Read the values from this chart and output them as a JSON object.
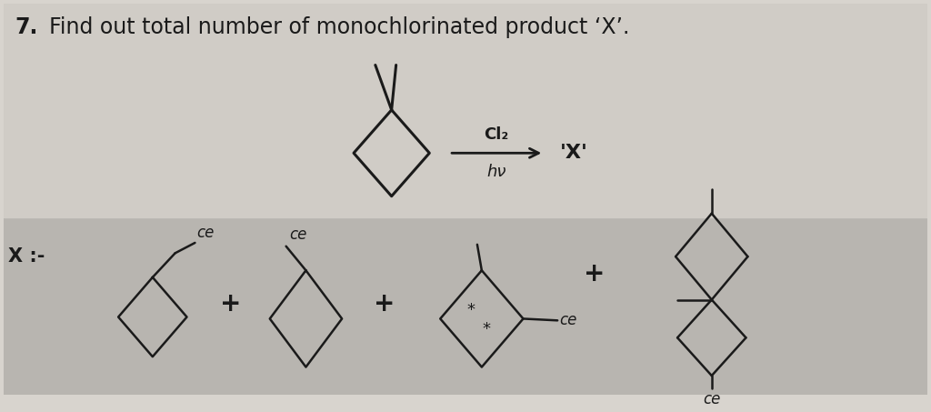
{
  "title_num": "7.",
  "title_text": "Find out total number of monochlorinated product ‘X’.",
  "title_fontsize": 17,
  "bg_top": "#d8d4ce",
  "bg_bottom": "#c0bdb8",
  "molecule_color": "#1a1a1a",
  "reaction_above": "Cl₂",
  "reaction_below": "hν",
  "product_label": "'X'",
  "answer_label": "X :-",
  "ce_label": "ce"
}
